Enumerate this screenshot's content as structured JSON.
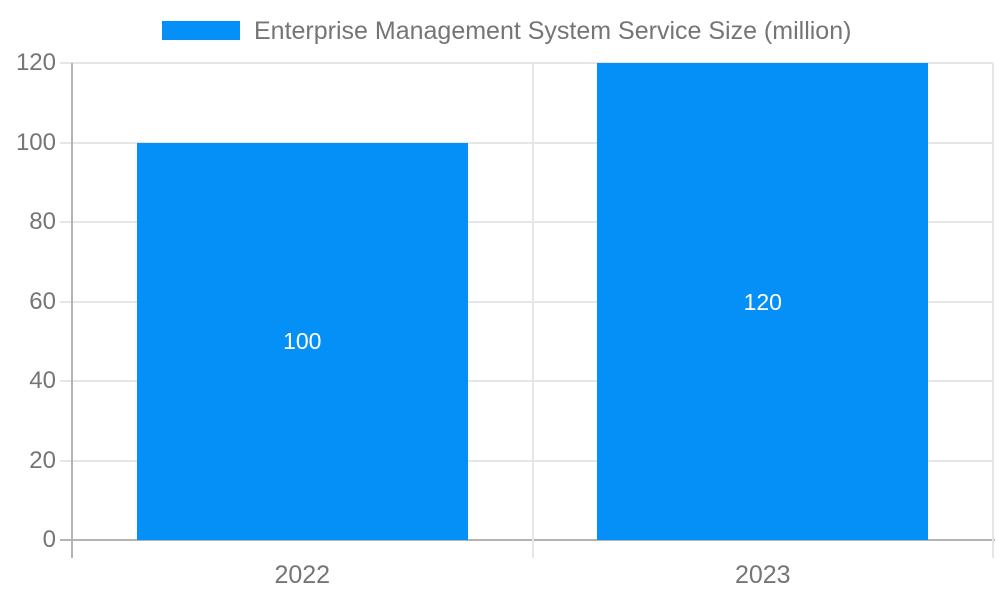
{
  "chart_data": {
    "type": "bar",
    "title": "Enterprise Management System Service Size (million)",
    "legend": {
      "position": "top",
      "entries": [
        {
          "label": "Enterprise Management System Service Size (million)",
          "color": "#0590F8"
        }
      ]
    },
    "categories": [
      "2022",
      "2023"
    ],
    "series": [
      {
        "name": "Enterprise Management System Service Size (million)",
        "color": "#0590F8",
        "values": [
          100,
          120
        ]
      }
    ],
    "bar_value_labels": [
      "100",
      "120"
    ],
    "xlabel": "",
    "ylabel": "",
    "ylim": [
      0,
      120
    ],
    "y_ticks": [
      0,
      20,
      40,
      60,
      80,
      100,
      120
    ],
    "grid": true
  },
  "colors": {
    "bar": "#0590F8",
    "axis_text": "#757575",
    "legend_text": "#757575",
    "gridline": "#e6e6e6",
    "axis_line": "#b3b3b3",
    "bar_label_text": "#ffffff",
    "background": "#ffffff"
  }
}
